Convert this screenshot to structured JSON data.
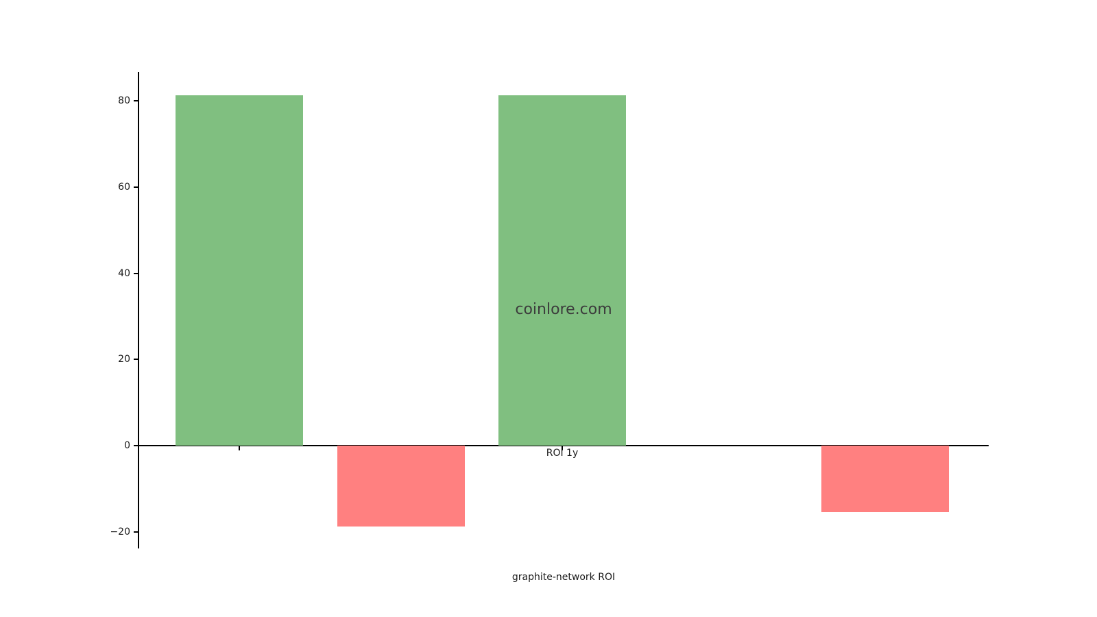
{
  "chart_data": {
    "type": "bar",
    "title": "graphite-network ROI",
    "watermark": "coinlore.com",
    "xlabel": "",
    "ylabel": "",
    "ylim": [
      -23.9,
      86.7
    ],
    "grid": false,
    "legend": null,
    "colors": {
      "positive": "#80bf80",
      "negative": "#ff8080"
    },
    "bars": [
      {
        "value": 81.3,
        "color": "#80bf80"
      },
      {
        "value": -18.8,
        "color": "#ff8080"
      },
      {
        "value": 81.3,
        "color": "#80bf80"
      },
      {
        "value": null,
        "color": null
      },
      {
        "value": -15.5,
        "color": "#ff8080"
      }
    ],
    "x_ticks": [
      {
        "bar_index": 0,
        "label": ""
      },
      {
        "bar_index": 2,
        "label": "ROI 1y"
      }
    ],
    "y_ticks": [
      {
        "value": 80,
        "label": "80"
      },
      {
        "value": 60,
        "label": "60"
      },
      {
        "value": 40,
        "label": "40"
      },
      {
        "value": 20,
        "label": "20"
      },
      {
        "value": 0,
        "label": "0"
      },
      {
        "value": -20,
        "label": "−20"
      }
    ]
  }
}
